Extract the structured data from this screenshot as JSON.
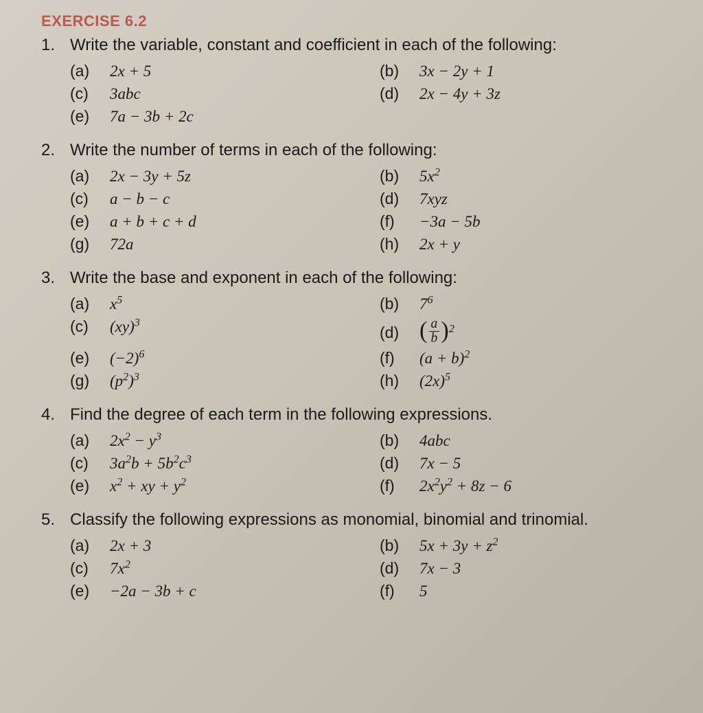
{
  "colors": {
    "header": "#b8453e",
    "text": "#1a1a1a",
    "background": "#c8c2b6"
  },
  "typography": {
    "header_size": 22,
    "question_size": 24,
    "option_size": 23
  },
  "exercise_header": "EXERCISE 6.2",
  "questions": [
    {
      "number": "1.",
      "text": "Write the variable, constant and coefficient in each of the following:",
      "options": [
        {
          "label": "(a)",
          "content": "2x + 5"
        },
        {
          "label": "(b)",
          "content": "3x − 2y + 1"
        },
        {
          "label": "(c)",
          "content": "3abc"
        },
        {
          "label": "(d)",
          "content": "2x − 4y + 3z"
        },
        {
          "label": "(e)",
          "content": "7a − 3b + 2c"
        }
      ]
    },
    {
      "number": "2.",
      "text": "Write the number of terms in each of the following:",
      "options": [
        {
          "label": "(a)",
          "content": "2x − 3y + 5z"
        },
        {
          "label": "(b)",
          "content_html": "5x<sup>2</sup>"
        },
        {
          "label": "(c)",
          "content": "a − b − c"
        },
        {
          "label": "(d)",
          "content": "7xyz"
        },
        {
          "label": "(e)",
          "content": "a + b + c + d"
        },
        {
          "label": "(f)",
          "content": "−3a − 5b"
        },
        {
          "label": "(g)",
          "content": "72a"
        },
        {
          "label": "(h)",
          "content": "2x + y"
        }
      ]
    },
    {
      "number": "3.",
      "text": "Write the base and exponent in each of the following:",
      "options": [
        {
          "label": "(a)",
          "content_html": "x<sup>5</sup>"
        },
        {
          "label": "(b)",
          "content_html": "7<sup>6</sup>"
        },
        {
          "label": "(c)",
          "content_html": "(xy)<sup>3</sup>"
        },
        {
          "label": "(d)",
          "fraction": {
            "num": "a",
            "den": "b"
          },
          "exponent": "2"
        },
        {
          "label": "(e)",
          "content_html": "(−2)<sup>6</sup>"
        },
        {
          "label": "(f)",
          "content_html": "(a + b)<sup>2</sup>"
        },
        {
          "label": "(g)",
          "content_html": "(p<sup>2</sup>)<sup>3</sup>"
        },
        {
          "label": "(h)",
          "content_html": "(2x)<sup>5</sup>"
        }
      ]
    },
    {
      "number": "4.",
      "text": "Find the degree of each term in the following expressions.",
      "options": [
        {
          "label": "(a)",
          "content_html": "2x<sup>2</sup> − y<sup>3</sup>"
        },
        {
          "label": "(b)",
          "content": "4abc"
        },
        {
          "label": "(c)",
          "content_html": "3a<sup>2</sup>b + 5b<sup>2</sup>c<sup>3</sup>"
        },
        {
          "label": "(d)",
          "content": "7x − 5"
        },
        {
          "label": "(e)",
          "content_html": "x<sup>2</sup> + xy + y<sup>2</sup>"
        },
        {
          "label": "(f)",
          "content_html": "2x<sup>2</sup>y<sup>2</sup> + 8z − 6"
        }
      ]
    },
    {
      "number": "5.",
      "text": "Classify the following expressions as monomial, binomial and trinomial.",
      "options": [
        {
          "label": "(a)",
          "content": "2x + 3"
        },
        {
          "label": "(b)",
          "content_html": "5x + 3y + z<sup>2</sup>"
        },
        {
          "label": "(c)",
          "content_html": "7x<sup>2</sup>"
        },
        {
          "label": "(d)",
          "content": "7x − 3"
        },
        {
          "label": "(e)",
          "content": "−2a − 3b + c"
        },
        {
          "label": "(f)",
          "content": "5"
        }
      ]
    }
  ]
}
